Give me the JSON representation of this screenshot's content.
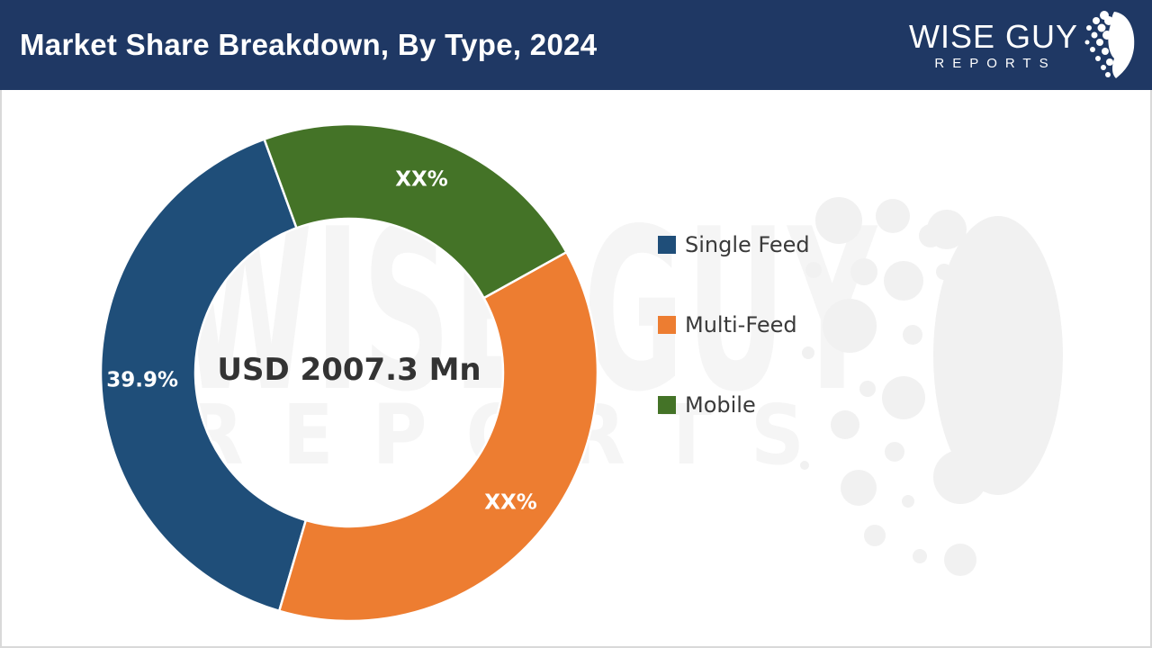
{
  "header": {
    "title": "Market Share Breakdown, By Type, 2024",
    "logo": {
      "name": "WISE GUY",
      "subtitle": "REPORTS"
    }
  },
  "watermark": {
    "line1": "WISE GUY",
    "line2": "REPORTS"
  },
  "chart_data": {
    "type": "pie",
    "subtype": "donut",
    "title": "Market Share Breakdown, By Type, 2024",
    "center_label": "USD 2007.3 Mn",
    "legend_position": "right",
    "start_angle_cw_deg": 340,
    "direction": "counterclockwise",
    "donut_hole_ratio": 0.62,
    "segments": [
      {
        "name": "Single Feed",
        "value_pct": 39.9,
        "display_label": "39.9%",
        "color": "#1F4E79"
      },
      {
        "name": "Multi-Feed",
        "value_pct": 37.6,
        "display_label": "XX%",
        "color": "#ED7D31"
      },
      {
        "name": "Mobile",
        "value_pct": 22.5,
        "display_label": "XX%",
        "color": "#447327"
      }
    ]
  },
  "colors": {
    "header_bg": "#1F3864",
    "text_dark": "#3A3A3A",
    "watermark": "#F5F5F5",
    "canvas_border": "#D9D9D9"
  }
}
